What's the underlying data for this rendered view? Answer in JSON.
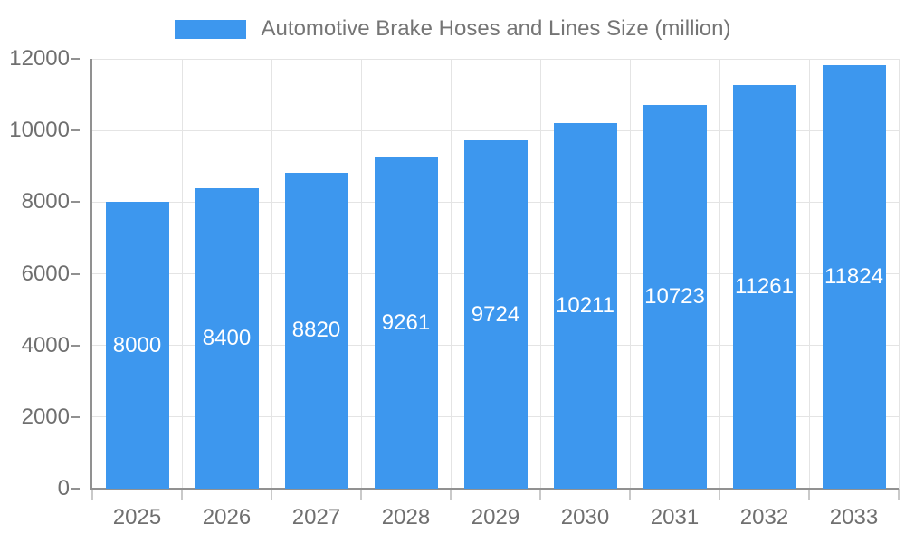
{
  "chart_data": {
    "type": "bar",
    "title": "Automotive Brake Hoses and Lines Size (million)",
    "series": [
      {
        "name": "Automotive Brake Hoses and Lines Size (million)",
        "values": [
          8000,
          8400,
          8820,
          9261,
          9724,
          10211,
          10723,
          11261,
          11824
        ]
      }
    ],
    "categories": [
      "2025",
      "2026",
      "2027",
      "2028",
      "2029",
      "2030",
      "2031",
      "2032",
      "2033"
    ],
    "value_labels": [
      "8000",
      "8400",
      "8820",
      "9261",
      "9724",
      "10211",
      "10723",
      "11261",
      "11824"
    ],
    "xlabel": "",
    "ylabel": "",
    "ylim": [
      0,
      12000
    ],
    "y_ticks": [
      0,
      2000,
      4000,
      6000,
      8000,
      10000,
      12000
    ],
    "grid": true,
    "legend_position": "top-center",
    "colors": {
      "bar": "#3d97ee",
      "title_text": "#757575",
      "tick_text": "#6f6f6f",
      "axis_line": "#919191",
      "grid_line": "#e4e4e4",
      "x_tick_line": "#c9c9c9",
      "value_label_text": "#ffffff",
      "background": "#ffffff"
    }
  }
}
